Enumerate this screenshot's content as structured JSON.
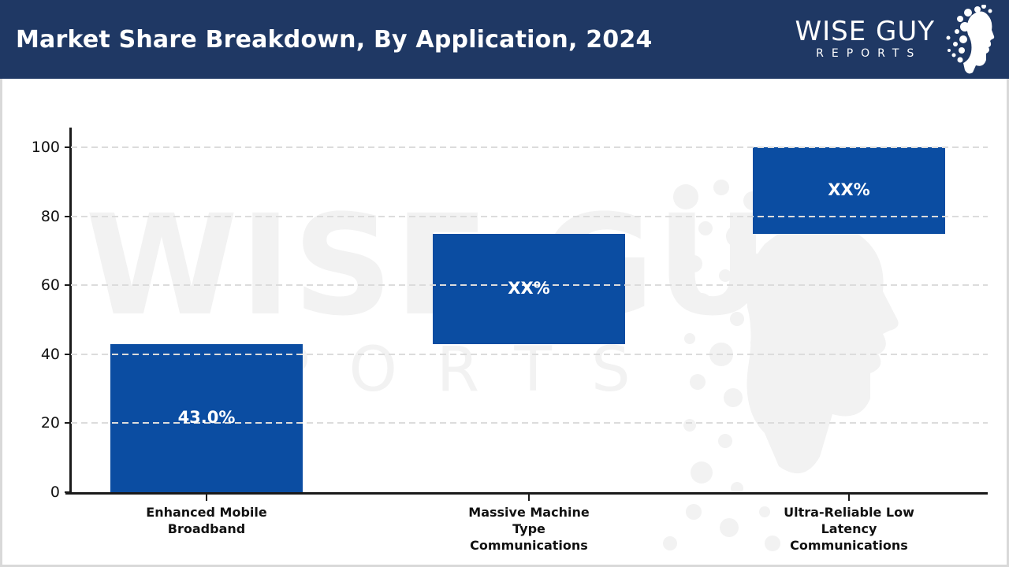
{
  "header": {
    "title": "Market Share Breakdown, By Application, 2024",
    "logo": {
      "line1": "WISE GUY",
      "line2": "REPORTS"
    }
  },
  "watermark": {
    "line1": "WISE GUY",
    "line2": "REPORTS"
  },
  "chart_data": {
    "type": "bar",
    "subtype": "stacked-progression-waterfall",
    "title": "Market Share Breakdown, By Application, 2024",
    "xlabel": "",
    "ylabel": "",
    "ylim": [
      0,
      100
    ],
    "yticks": [
      0,
      20,
      40,
      60,
      80,
      100
    ],
    "grid": "horizontal-dashed",
    "legend": "none",
    "bar_color": "#0b4da2",
    "value_label_color": "#ffffff",
    "segments": [
      {
        "category": "Enhanced Mobile Broadband",
        "label_lines": [
          "Enhanced Mobile",
          "Broadband"
        ],
        "start": 0,
        "end": 43,
        "value_label": "43.0%"
      },
      {
        "category": "Massive Machine Type Communications",
        "label_lines": [
          "Massive Machine",
          "Type",
          "Communications"
        ],
        "start": 43,
        "end": 75,
        "value_label": "XX%"
      },
      {
        "category": "Ultra-Reliable Low Latency Communications",
        "label_lines": [
          "Ultra-Reliable Low",
          "Latency",
          "Communications"
        ],
        "start": 75,
        "end": 100,
        "value_label": "XX%"
      }
    ]
  }
}
